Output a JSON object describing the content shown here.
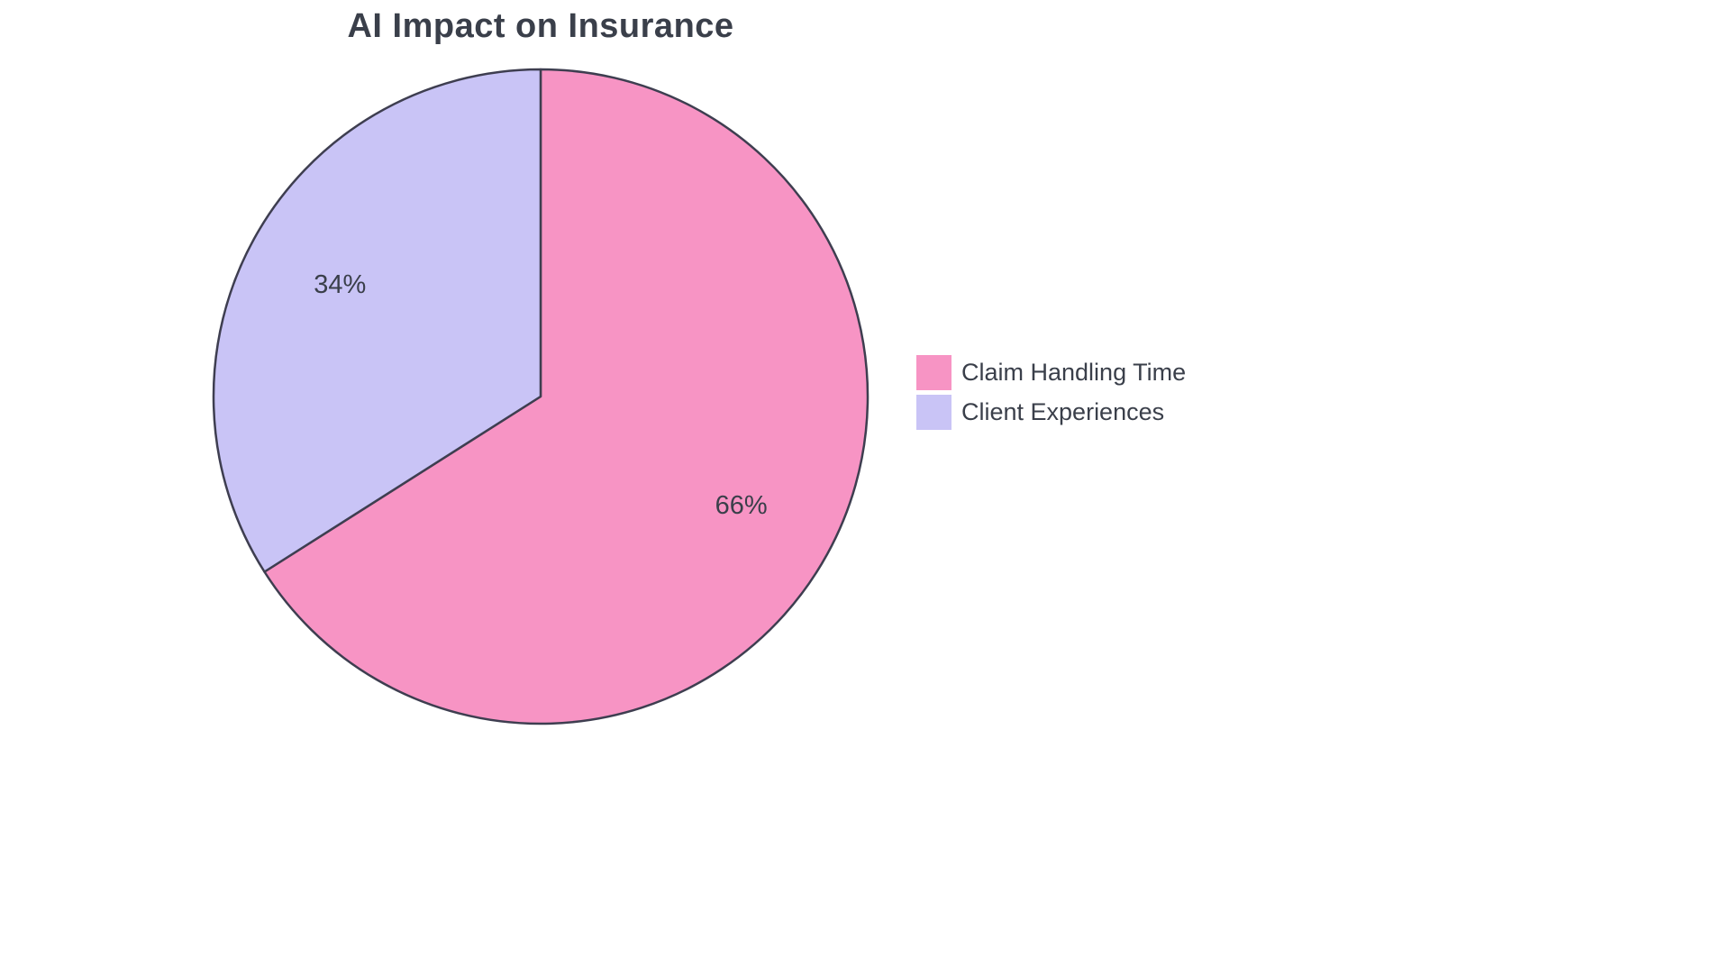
{
  "chart_data": {
    "type": "pie",
    "title": "AI Impact on Insurance",
    "series": [
      {
        "label": "Claim Handling Time",
        "value": 66,
        "display": "66%",
        "color": "#F794C4"
      },
      {
        "label": "Client Experiences",
        "value": 34,
        "display": "34%",
        "color": "#C9C4F6"
      }
    ],
    "start_angle_deg": 0,
    "direction": "clockwise",
    "legend_position": "right",
    "slice_border_color": "#3E3E50",
    "slice_border_width": 2.5,
    "background_color": "#FFFFFF",
    "text_color": "#3A3F4A"
  }
}
